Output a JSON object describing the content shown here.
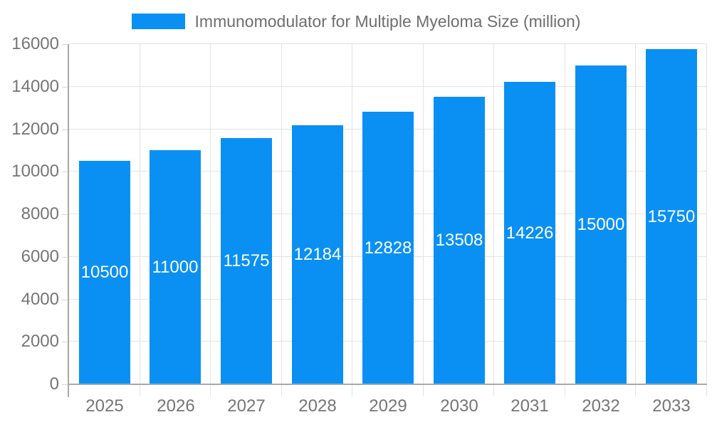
{
  "colors": {
    "bar": "#0a90f3",
    "bar_label": "#ffffff",
    "grid": "#e3e3e3",
    "axis": "#a9a9a9",
    "tick": "#d6d6d6",
    "axis_text": "#757575",
    "legend_text": "#6e6e6e",
    "background": "#ffffff"
  },
  "legend": {
    "label": "Immunomodulator for Multiple Myeloma Size (million)"
  },
  "chart_data": {
    "type": "bar",
    "title": "Immunomodulator for Multiple Myeloma Size (million)",
    "categories": [
      "2025",
      "2026",
      "2027",
      "2028",
      "2029",
      "2030",
      "2031",
      "2032",
      "2033"
    ],
    "values": [
      10500,
      11000,
      11575,
      12184,
      12828,
      13508,
      14226,
      15000,
      15750
    ],
    "bar_value_labels": [
      "10500",
      "11000",
      "11575",
      "12184",
      "12828",
      "13508",
      "14226",
      "15000",
      "15750"
    ],
    "xlabel": "",
    "ylabel": "",
    "ylim": [
      0,
      16000
    ],
    "yticks": [
      0,
      2000,
      4000,
      6000,
      8000,
      10000,
      12000,
      14000,
      16000
    ],
    "grid": true,
    "legend_position": "top",
    "bar_labels_visible": true,
    "bar_label_color": "#ffffff"
  }
}
